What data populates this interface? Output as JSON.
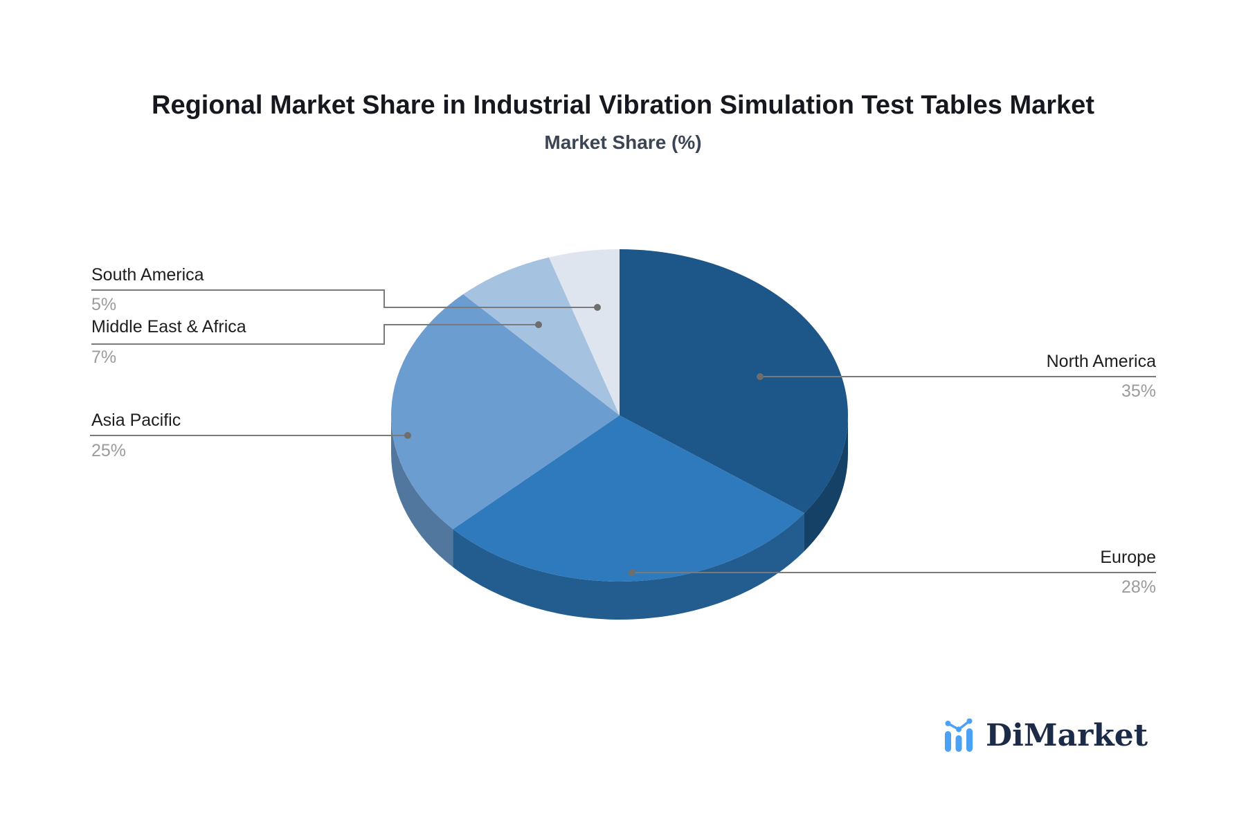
{
  "title": "Regional Market Share in Industrial Vibration Simulation Test Tables Market",
  "subtitle": "Market Share (%)",
  "branding": {
    "name": "DiMarket",
    "icon": "bar-line-chart-logo",
    "accent_color": "#4BA2F5",
    "text_color": "#1C2B47"
  },
  "chart_data": {
    "type": "pie",
    "title": "Regional Market Share in Industrial Vibration Simulation Test Tables Market",
    "series_label": "Market Share (%)",
    "unit": "%",
    "effect_3d": true,
    "start_angle": "12-oclock",
    "direction": "clockwise",
    "legend": "none",
    "slices": [
      {
        "label": "North America",
        "value": 35,
        "value_label": "35%",
        "color": "#1D5688",
        "callout_side": "right"
      },
      {
        "label": "Europe",
        "value": 28,
        "value_label": "28%",
        "color": "#2E7ABC",
        "callout_side": "right"
      },
      {
        "label": "Asia Pacific",
        "value": 25,
        "value_label": "25%",
        "color": "#6B9DD0",
        "callout_side": "left"
      },
      {
        "label": "Middle East & Africa",
        "value": 7,
        "value_label": "7%",
        "color": "#A5C3E0",
        "callout_side": "left"
      },
      {
        "label": "South America",
        "value": 5,
        "value_label": "5%",
        "color": "#DFE5EF",
        "callout_side": "left"
      }
    ],
    "label_text_color": "#1E1E1E",
    "value_text_color": "#9B9B9B",
    "leader_line_color": "#7A7A7A",
    "leader_dot_color": "#6E6E6E"
  }
}
